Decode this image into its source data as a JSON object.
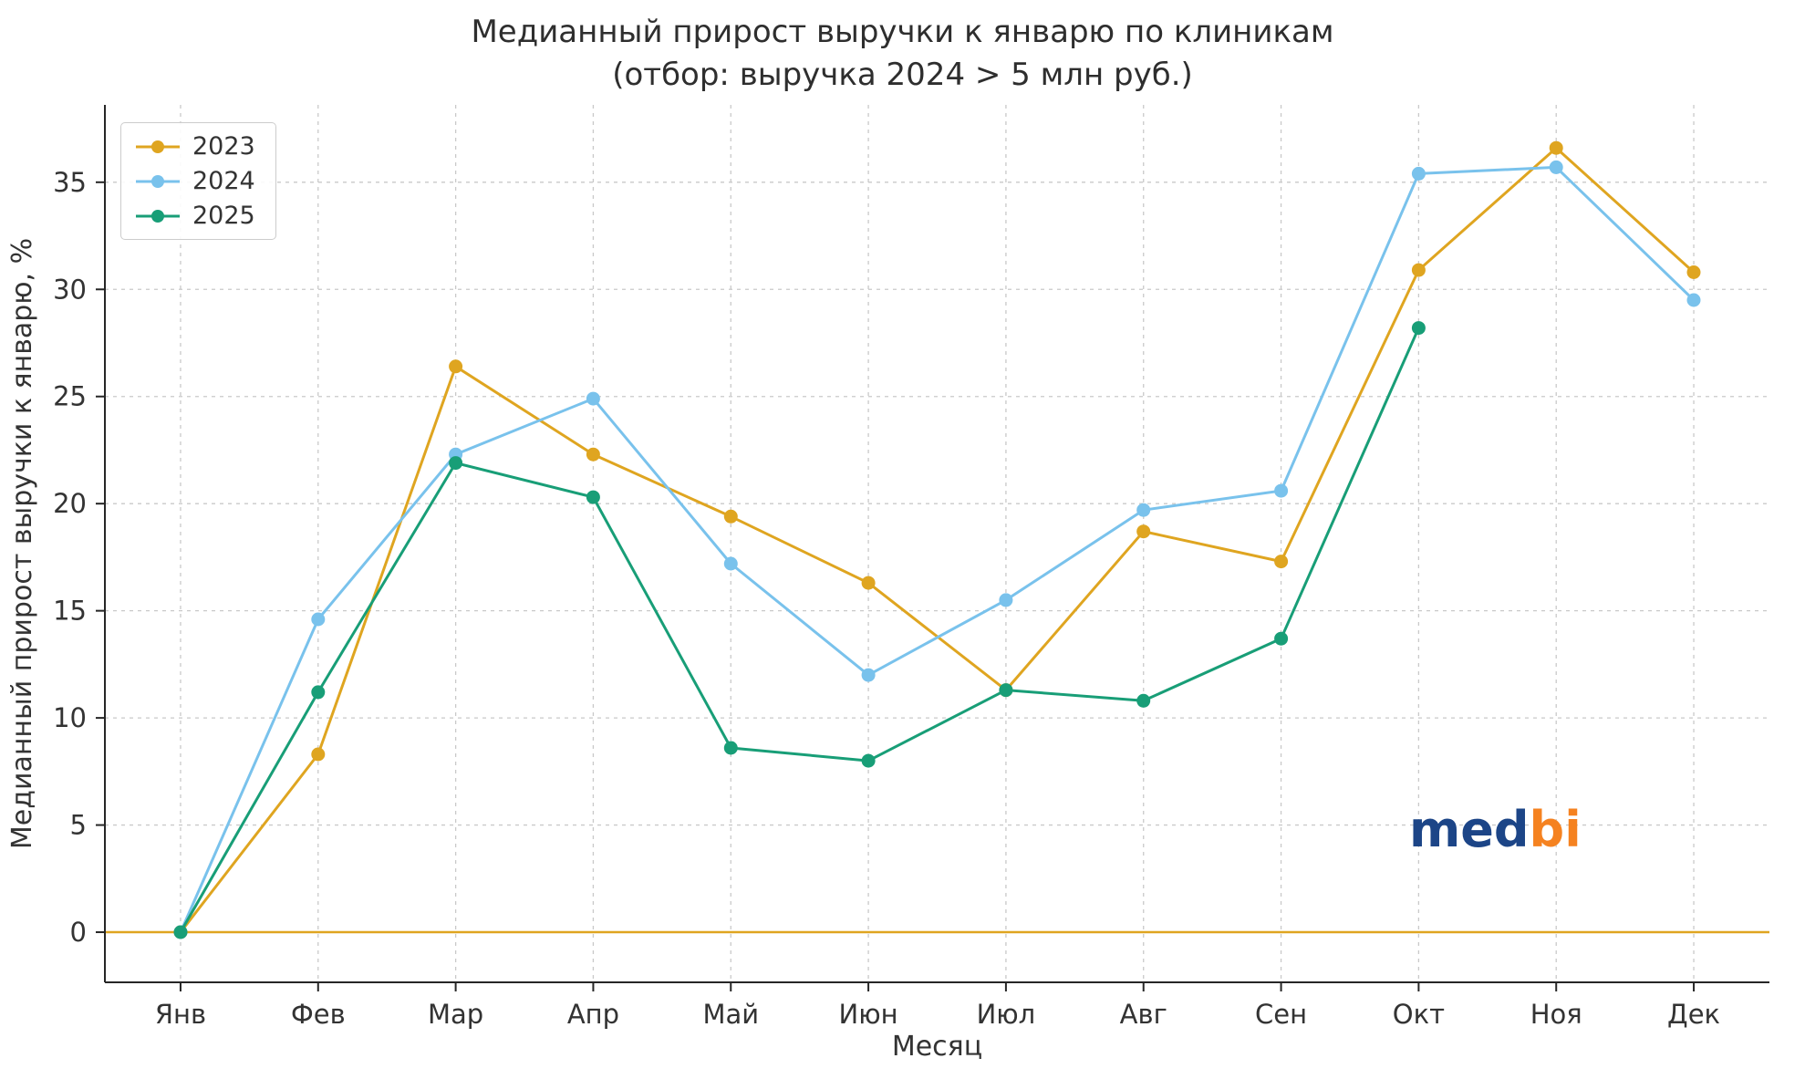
{
  "title": {
    "line1": "Медианный прирост выручки к январю по клиникам",
    "line2": "(отбор: выручка 2024 > 5 млн руб.)"
  },
  "chart_data": {
    "type": "line",
    "x": [
      "Янв",
      "Фев",
      "Мар",
      "Апр",
      "Май",
      "Июн",
      "Июл",
      "Авг",
      "Сен",
      "Окт",
      "Ноя",
      "Дек"
    ],
    "series": [
      {
        "name": "2023",
        "color": "#dfa520",
        "values": [
          0,
          8.3,
          26.4,
          22.3,
          19.4,
          16.3,
          11.3,
          18.7,
          17.3,
          30.9,
          36.6,
          30.8
        ]
      },
      {
        "name": "2024",
        "color": "#79c2ec",
        "values": [
          0,
          14.6,
          22.3,
          24.9,
          17.2,
          12.0,
          15.5,
          19.7,
          20.6,
          35.4,
          35.7,
          29.5
        ]
      },
      {
        "name": "2025",
        "color": "#189e77",
        "values": [
          0,
          11.2,
          21.9,
          20.3,
          8.6,
          8.0,
          11.3,
          10.8,
          13.7,
          28.2,
          null,
          null
        ]
      }
    ],
    "xlabel": "Месяц",
    "ylabel": "Медианный прирост выручки к январю, %",
    "yticks": [
      0,
      5,
      10,
      15,
      20,
      25,
      30,
      35
    ],
    "ylim": [
      -2.34,
      38.61
    ],
    "grid": true,
    "legend_position": "upper-left",
    "zero_line_color": "#dfa520"
  },
  "logo": {
    "part1": "med",
    "part2": "bi",
    "color1": "#1c4587",
    "color2": "#f58220"
  }
}
